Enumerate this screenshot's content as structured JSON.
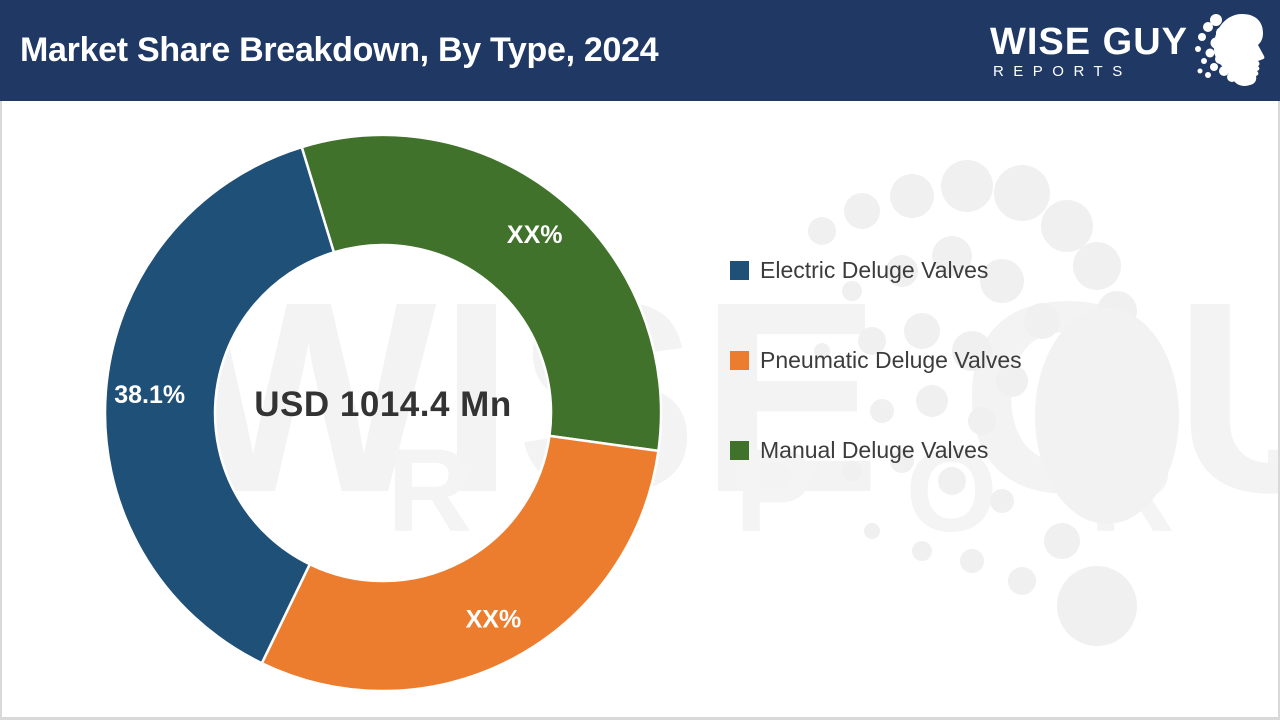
{
  "header": {
    "title": "Market Share Breakdown, By Type, 2024",
    "background_color": "#1f3864",
    "logo": {
      "line1": "WISE GUY",
      "line2": "REPORTS"
    }
  },
  "watermark": {
    "line1": "WISE GUY",
    "line2": "REPORTS"
  },
  "chart_data": {
    "type": "pie",
    "subtype": "donut",
    "title": "Market Share Breakdown, By Type, 2024",
    "center_label": "USD 1014.4 Mn",
    "start_angle_deg": -17,
    "legend_position": "right",
    "segments": [
      {
        "name": "Manual Deluge Valves",
        "value_pct": 31.9,
        "value_estimated_from_arc": true,
        "display_label": "XX%",
        "color": "#41722b",
        "label_color": "#ffffff"
      },
      {
        "name": "Pneumatic Deluge Valves",
        "value_pct": 30.0,
        "value_estimated_from_arc": true,
        "display_label": "XX%",
        "color": "#ec7d2e",
        "label_color": "#ffffff"
      },
      {
        "name": "Electric Deluge Valves",
        "value_pct": 38.1,
        "value_estimated_from_arc": false,
        "display_label": "38.1%",
        "color": "#1f5078",
        "label_color": "#ffffff"
      }
    ],
    "legend": [
      {
        "label": "Electric Deluge Valves",
        "color": "#1f5078"
      },
      {
        "label": "Pneumatic Deluge Valves",
        "color": "#ec7d2e"
      },
      {
        "label": "Manual Deluge Valves",
        "color": "#41722b"
      }
    ]
  }
}
